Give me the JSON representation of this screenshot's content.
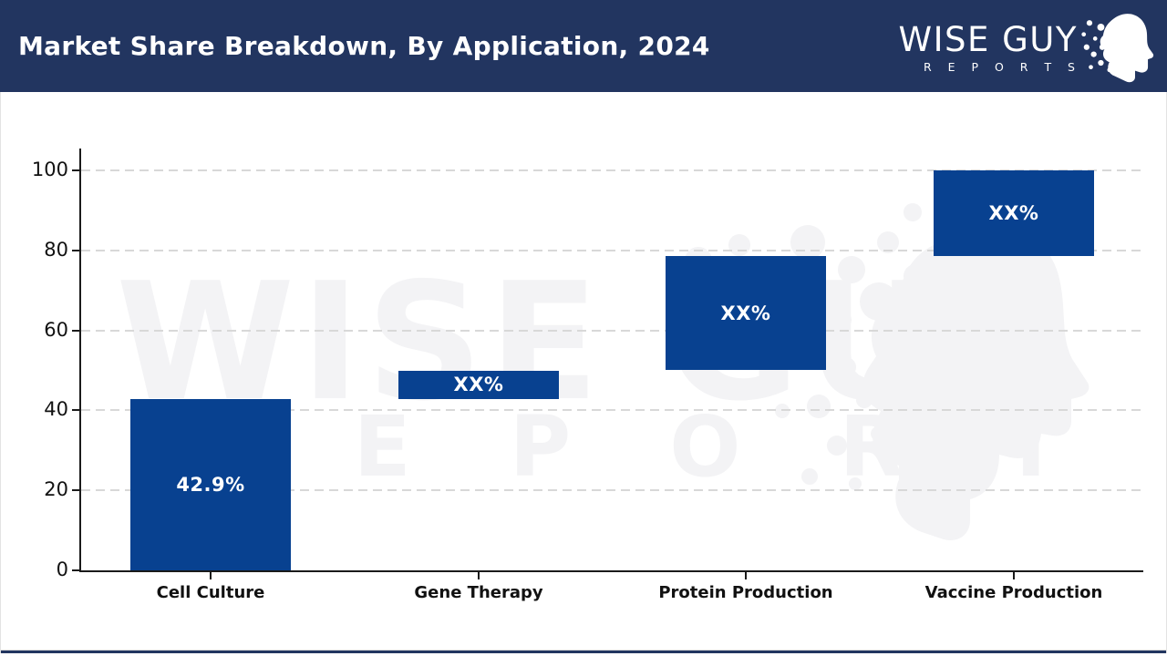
{
  "header": {
    "title": "Market Share Breakdown, By Application, 2024",
    "logo": {
      "wordmark": "WISE GUY",
      "subtitle": "R E P O R T S"
    }
  },
  "watermark": {
    "line1": "WISE GU",
    "line2": "R E P O R T S"
  },
  "colors": {
    "header_bg": "#223560",
    "bar_blue": "#084190",
    "grid_line": "#d8d8d8",
    "watermark_gray": "#f3f3f5",
    "bar_label_text": "#ffffff",
    "axis_text": "#111111"
  },
  "chart_data": {
    "type": "bar",
    "subtype": "waterfall",
    "title": "Market Share Breakdown, By Application, 2024",
    "categories": [
      "Cell Culture",
      "Gene Therapy",
      "Protein Production",
      "Vaccine Production"
    ],
    "segments": [
      {
        "category": "Cell Culture",
        "start": 0,
        "end": 42.9,
        "label": "42.9%"
      },
      {
        "category": "Gene Therapy",
        "start": 42.9,
        "end": 50.0,
        "label": "XX%"
      },
      {
        "category": "Protein Production",
        "start": 50.0,
        "end": 78.6,
        "label": "XX%"
      },
      {
        "category": "Vaccine Production",
        "start": 78.6,
        "end": 100.0,
        "label": "XX%"
      }
    ],
    "yticks": [
      0,
      20,
      40,
      60,
      80,
      100
    ],
    "ylim": [
      0,
      105
    ],
    "xlabel": "",
    "ylabel": "",
    "grid": "horizontal-dashed",
    "legend": false
  }
}
